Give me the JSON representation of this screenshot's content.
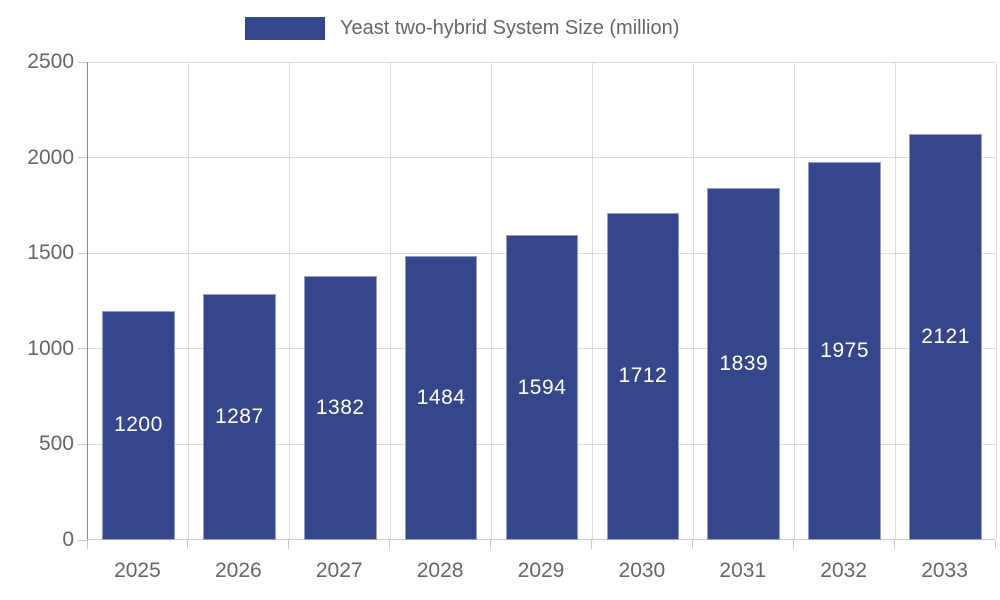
{
  "legend": {
    "label": "Yeast two-hybrid System Size (million)"
  },
  "colors": {
    "bar": "#35478a",
    "bar_label": "#ffffff",
    "grid": "#dcdcdc",
    "axis_line": "#8a8a8a",
    "baseline": "#c9c9c9",
    "tick_text": "#666666",
    "legend_text": "#666666",
    "background": "#ffffff"
  },
  "chart_data": {
    "type": "bar",
    "title": "Yeast two-hybrid System Size (million)",
    "categories": [
      "2025",
      "2026",
      "2027",
      "2028",
      "2029",
      "2030",
      "2031",
      "2032",
      "2033"
    ],
    "values": [
      1200,
      1287,
      1382,
      1484,
      1594,
      1712,
      1839,
      1975,
      2121
    ],
    "xlabel": "",
    "ylabel": "",
    "ylim": [
      0,
      2500
    ],
    "yticks": [
      0,
      500,
      1000,
      1500,
      2000,
      2500
    ],
    "grid": true,
    "legend_position": "top-center",
    "bar_label_position": "center"
  }
}
